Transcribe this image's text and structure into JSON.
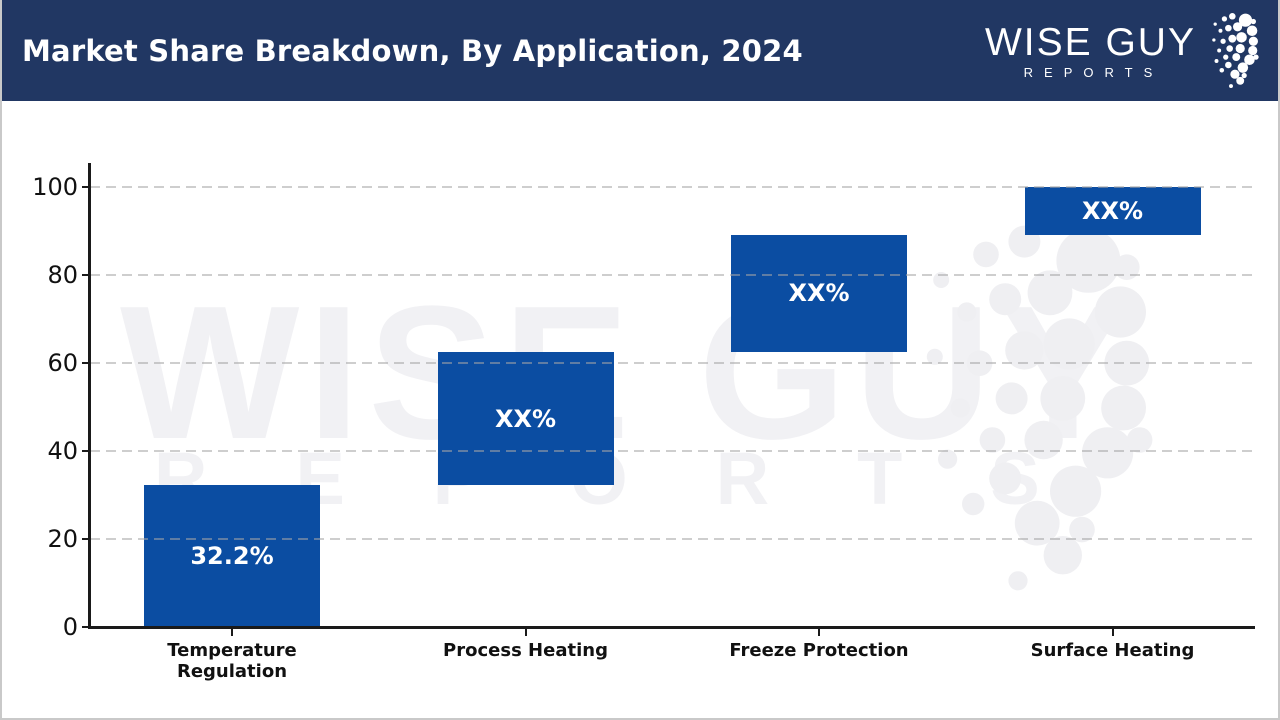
{
  "header": {
    "title": "Market Share Breakdown, By Application, 2024",
    "logo": {
      "line1": "WISE GUY",
      "line2": "REPORTS"
    }
  },
  "watermark": {
    "line1": "WISE GUY",
    "line2": "REPORTS"
  },
  "chart_data": {
    "type": "bar",
    "subtype": "waterfall",
    "title": "Market Share Breakdown, By Application, 2024",
    "categories": [
      "Temperature Regulation",
      "Process Heating",
      "Freeze Protection",
      "Surface Heating"
    ],
    "segments": [
      {
        "category": "Temperature Regulation",
        "start": 0,
        "end": 32.2,
        "label": "32.2%"
      },
      {
        "category": "Process Heating",
        "start": 32.2,
        "end": 62.5,
        "label": "XX%"
      },
      {
        "category": "Freeze Protection",
        "start": 62.5,
        "end": 89.2,
        "label": "XX%"
      },
      {
        "category": "Surface Heating",
        "start": 89.2,
        "end": 100,
        "label": "XX%"
      }
    ],
    "xlabel": "",
    "ylabel": "",
    "ylim": [
      0,
      100
    ],
    "yticks": [
      0,
      20,
      40,
      60,
      80,
      100
    ],
    "grid": "horizontal-dashed",
    "legend": "none",
    "bar_color": "#0b4da2",
    "bar_label_color": "#ffffff"
  },
  "colors": {
    "header_bg": "#213763",
    "bar": "#0b4da2",
    "axis": "#1a1a1a",
    "gridline": "#cccccc",
    "watermark": "#f1f1f4",
    "frame_border": "#c9c9c9"
  }
}
